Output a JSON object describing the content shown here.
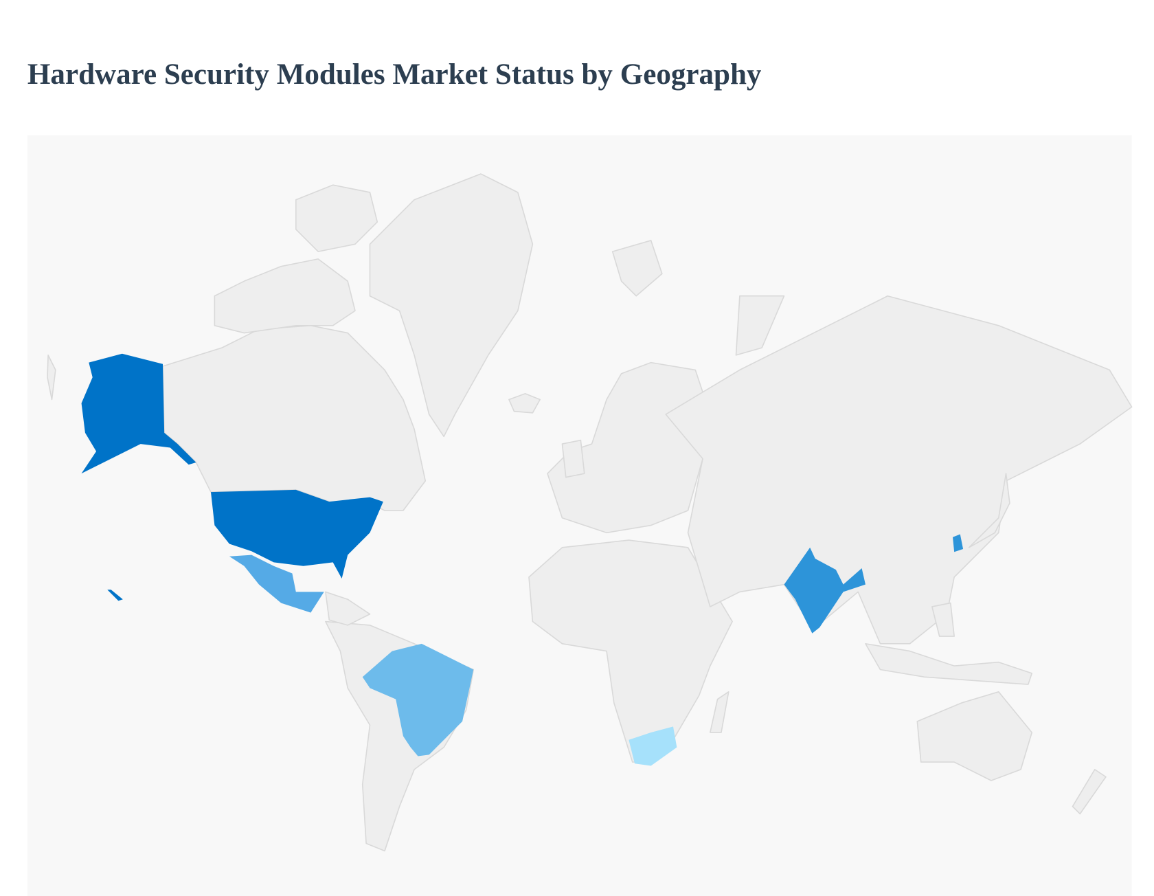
{
  "header": {
    "title": "Hardware Security Modules Market Status by Geography"
  }
}
